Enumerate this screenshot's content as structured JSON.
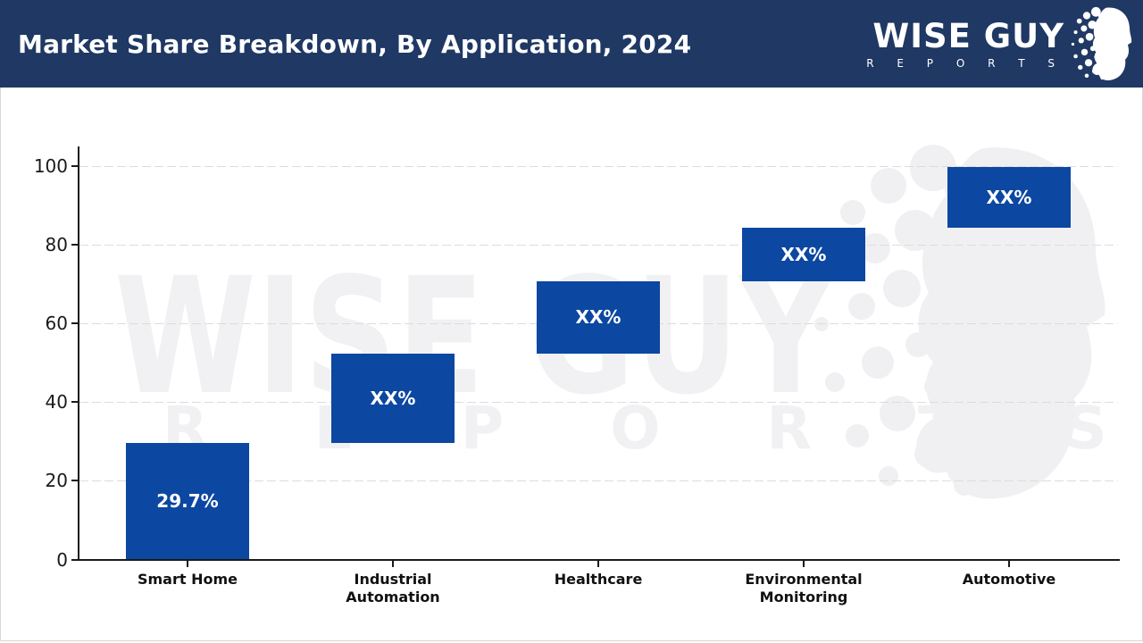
{
  "header": {
    "title": "Market Share Breakdown, By Application, 2024",
    "background_color": "#1f3864",
    "logo": {
      "name": "WISE GUY",
      "sub": "R E P O R T S"
    }
  },
  "watermark": {
    "name": "WISE GUY",
    "sub": "R E P O R T S"
  },
  "chart_data": {
    "type": "bar",
    "subtype": "waterfall-floating-bars",
    "title": "Market Share Breakdown, By Application, 2024",
    "categories": [
      "Smart Home",
      "Industrial Automation",
      "Healthcare",
      "Environmental Monitoring",
      "Automotive"
    ],
    "series": [
      {
        "name": "Market Share",
        "data": [
          {
            "category": "Smart Home",
            "start": 0,
            "end": 29.7,
            "label": "29.7%"
          },
          {
            "category": "Industrial Automation",
            "start": 29.7,
            "end": 52.3,
            "label": "XX%"
          },
          {
            "category": "Healthcare",
            "start": 52.3,
            "end": 70.8,
            "label": "XX%"
          },
          {
            "category": "Environmental Monitoring",
            "start": 70.8,
            "end": 84.3,
            "label": "XX%"
          },
          {
            "category": "Automotive",
            "start": 84.3,
            "end": 99.8,
            "label": "XX%"
          }
        ]
      }
    ],
    "xlabel": "",
    "ylabel": "",
    "ylim": [
      0,
      105
    ],
    "yticks": [
      0,
      20,
      40,
      60,
      80,
      100
    ],
    "grid": {
      "axis": "y",
      "style": "dashed",
      "color": "#dcdcdc"
    },
    "legend": "none",
    "bar_color": "#0c47a1",
    "bar_label_color": "#ffffff",
    "axis_color": "#1a1a1a"
  }
}
